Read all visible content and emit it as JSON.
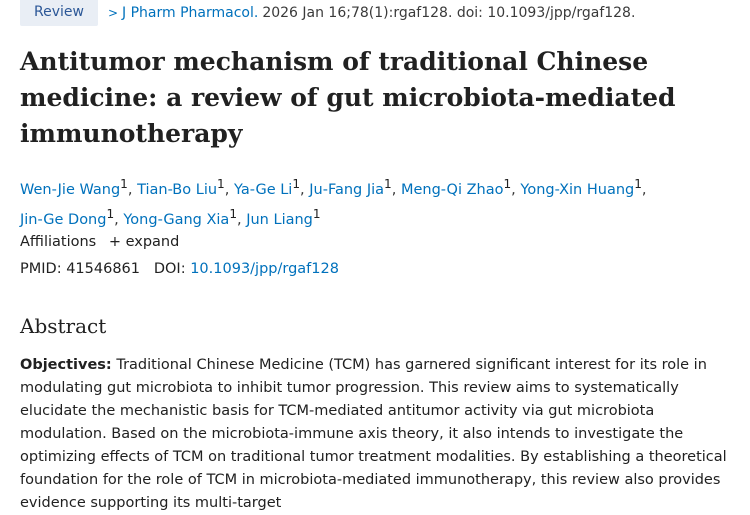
{
  "topline": {
    "badge": "Review",
    "journal": "J Pharm Pharmacol.",
    "citation": "2026 Jan 16;78(1):rgaf128. doi: 10.1093/jpp/rgaf128."
  },
  "title": "Antitumor mechanism of traditional Chinese medicine: a review of gut microbiota-mediated immunotherapy",
  "authors": [
    {
      "name": "Wen-Jie Wang",
      "aff": "1"
    },
    {
      "name": "Tian-Bo Liu",
      "aff": "1"
    },
    {
      "name": "Ya-Ge Li",
      "aff": "1"
    },
    {
      "name": "Ju-Fang Jia",
      "aff": "1"
    },
    {
      "name": "Meng-Qi Zhao",
      "aff": "1"
    },
    {
      "name": "Yong-Xin Huang",
      "aff": "1"
    },
    {
      "name": "Jin-Ge Dong",
      "aff": "1"
    },
    {
      "name": "Yong-Gang Xia",
      "aff": "1"
    },
    {
      "name": "Jun Liang",
      "aff": "1"
    }
  ],
  "affiliations": {
    "label": "Affiliations",
    "expand": "expand"
  },
  "ids": {
    "pmid_label": "PMID:",
    "pmid": "41546861",
    "doi_label": "DOI:",
    "doi": "10.1093/jpp/rgaf128"
  },
  "abstract": {
    "heading": "Abstract",
    "objectives_label": "Objectives:",
    "objectives_text": "Traditional Chinese Medicine (TCM) has garnered significant interest for its role in modulating gut microbiota to inhibit tumor progression. This review aims to systematically elucidate the mechanistic basis for TCM-mediated antitumor activity via gut microbiota modulation. Based on the microbiota-immune axis theory, it also intends to investigate the optimizing effects of TCM on traditional tumor treatment modalities. By establishing a theoretical foundation for the role of TCM in microbiota-mediated immunotherapy, this review also provides evidence supporting its multi-target"
  }
}
